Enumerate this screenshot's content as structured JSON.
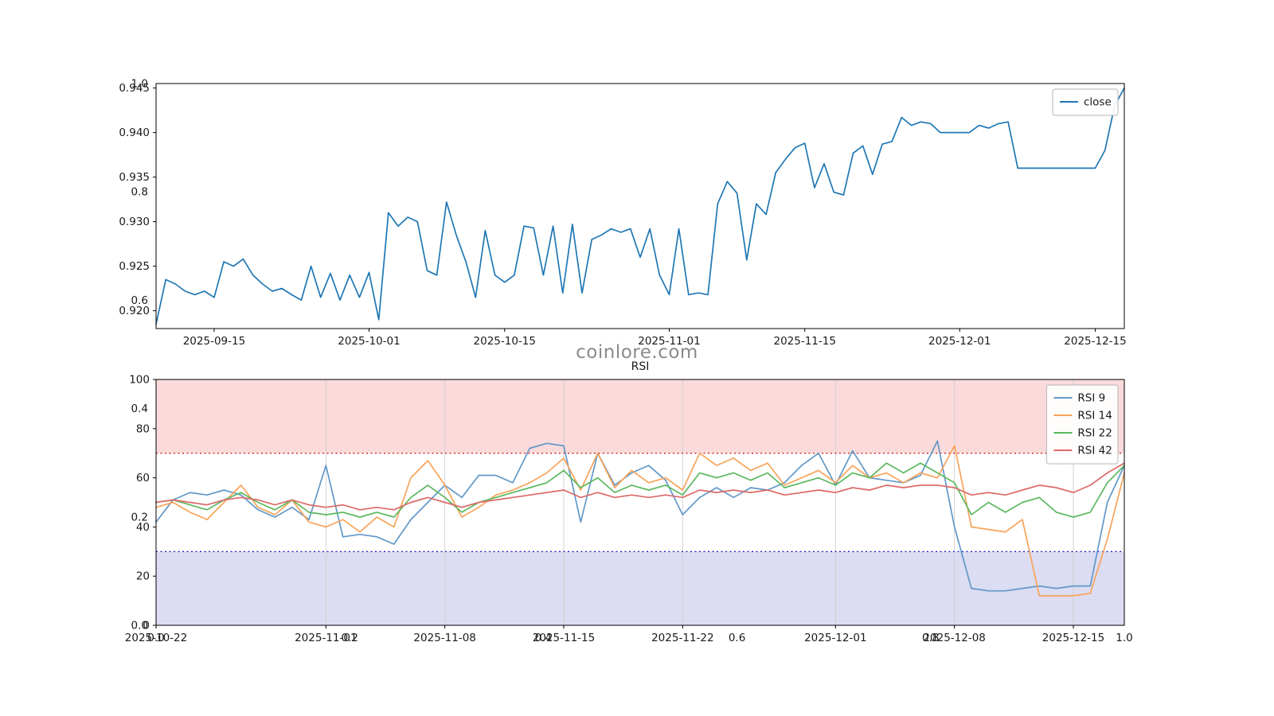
{
  "watermark": "coinlore.com",
  "stray_axis": {
    "left_labels": [
      "1.0",
      "0.8",
      "0.6",
      "0.4",
      "0.2",
      "0.0"
    ],
    "bottom_labels": [
      "0.0",
      "0.2",
      "0.4",
      "0.6",
      "0.8",
      "1.0"
    ]
  },
  "chart_data": [
    {
      "type": "line",
      "name": "price",
      "title": "",
      "x_start": "2025-09-09",
      "x_end": "2025-12-18",
      "freq": "daily",
      "ylim": [
        0.918,
        0.9455
      ],
      "grid_vertical": false,
      "show_legend": true,
      "legend_position": "upper right",
      "yticks": [
        {
          "v": 0.92,
          "label": "0.920"
        },
        {
          "v": 0.925,
          "label": "0.925"
        },
        {
          "v": 0.93,
          "label": "0.930"
        },
        {
          "v": 0.935,
          "label": "0.935"
        },
        {
          "v": 0.94,
          "label": "0.940"
        },
        {
          "v": 0.945,
          "label": "0.945"
        }
      ],
      "xticks": [
        "2025-09-15",
        "2025-10-01",
        "2025-10-15",
        "2025-11-01",
        "2025-11-15",
        "2025-12-01",
        "2025-12-15"
      ],
      "series": [
        {
          "name": "close",
          "color": "#1f77b4",
          "values": [
            0.9185,
            0.9235,
            0.923,
            0.9222,
            0.9218,
            0.9222,
            0.9215,
            0.9255,
            0.925,
            0.9258,
            0.924,
            0.923,
            0.9222,
            0.9225,
            0.9218,
            0.9212,
            0.925,
            0.9215,
            0.9242,
            0.9212,
            0.924,
            0.9215,
            0.9243,
            0.919,
            0.931,
            0.9295,
            0.9305,
            0.93,
            0.9245,
            0.924,
            0.9322,
            0.9285,
            0.9255,
            0.9215,
            0.929,
            0.924,
            0.9232,
            0.924,
            0.9295,
            0.9293,
            0.924,
            0.9295,
            0.922,
            0.9297,
            0.922,
            0.928,
            0.9285,
            0.9292,
            0.9288,
            0.9292,
            0.926,
            0.9292,
            0.924,
            0.9218,
            0.9292,
            0.9218,
            0.922,
            0.9218,
            0.932,
            0.9345,
            0.9332,
            0.9257,
            0.932,
            0.9308,
            0.9355,
            0.937,
            0.9383,
            0.9388,
            0.9338,
            0.9365,
            0.9333,
            0.933,
            0.9377,
            0.9385,
            0.9353,
            0.9387,
            0.939,
            0.9417,
            0.9408,
            0.9412,
            0.941,
            0.94,
            0.94,
            0.94,
            0.94,
            0.9408,
            0.9405,
            0.941,
            0.9412,
            0.936,
            0.936,
            0.936,
            0.936,
            0.936,
            0.936,
            0.936,
            0.936,
            0.936,
            0.938,
            0.943,
            0.945
          ]
        }
      ]
    },
    {
      "type": "line",
      "name": "rsi",
      "title": "RSI",
      "x_start": "2025-10-22",
      "x_end": "2025-12-18",
      "freq": "daily",
      "ylim": [
        0,
        100
      ],
      "grid_vertical": true,
      "show_legend": true,
      "legend_position": "upper right",
      "bands": [
        {
          "from": 70,
          "to": 100,
          "color": "#fadada",
          "meaning": "overbought"
        },
        {
          "from": 0,
          "to": 30,
          "color": "#dcdcf2",
          "meaning": "oversold"
        }
      ],
      "hlines": [
        {
          "y": 70,
          "color": "#cc2222",
          "style": "dotted"
        },
        {
          "y": 30,
          "color": "#2222cc",
          "style": "dotted"
        }
      ],
      "yticks": [
        {
          "v": 0,
          "label": "0"
        },
        {
          "v": 20,
          "label": "20"
        },
        {
          "v": 40,
          "label": "40"
        },
        {
          "v": 60,
          "label": "60"
        },
        {
          "v": 80,
          "label": "80"
        },
        {
          "v": 100,
          "label": "100"
        }
      ],
      "xticks": [
        "2025-10-22",
        "2025-11-01",
        "2025-11-08",
        "2025-11-15",
        "2025-11-22",
        "2025-12-01",
        "2025-12-08",
        "2025-12-15"
      ],
      "series": [
        {
          "name": "RSI 9",
          "color": "#6298c8",
          "values": [
            42,
            51,
            54,
            53,
            55,
            53,
            47,
            44,
            48,
            43,
            65,
            36,
            37,
            36,
            33,
            43,
            50,
            57,
            52,
            61,
            61,
            58,
            72,
            74,
            73,
            42,
            70,
            57,
            62,
            65,
            59,
            45,
            52,
            56,
            52,
            56,
            55,
            58,
            65,
            70,
            57,
            71,
            60,
            59,
            58,
            61,
            75,
            40,
            15,
            14,
            14,
            15,
            16,
            15,
            16,
            16,
            50,
            65
          ]
        },
        {
          "name": "RSI 14",
          "color": "#f8a35a",
          "values": [
            48,
            50,
            46,
            43,
            50,
            57,
            48,
            45,
            51,
            42,
            40,
            43,
            38,
            44,
            40,
            60,
            67,
            57,
            44,
            48,
            53,
            55,
            58,
            62,
            68,
            55,
            70,
            56,
            63,
            58,
            60,
            55,
            70,
            65,
            68,
            63,
            66,
            57,
            60,
            63,
            58,
            65,
            60,
            62,
            58,
            62,
            60,
            73,
            40,
            39,
            38,
            43,
            12,
            12,
            12,
            13,
            35,
            62
          ]
        },
        {
          "name": "RSI 22",
          "color": "#5cb85f",
          "values": [
            50,
            51,
            49,
            47,
            51,
            54,
            50,
            47,
            51,
            46,
            45,
            46,
            44,
            46,
            44,
            52,
            57,
            52,
            46,
            50,
            52,
            54,
            56,
            58,
            63,
            56,
            60,
            54,
            57,
            55,
            57,
            53,
            62,
            60,
            62,
            59,
            62,
            56,
            58,
            60,
            57,
            62,
            60,
            66,
            62,
            66,
            62,
            58,
            45,
            50,
            46,
            50,
            52,
            46,
            44,
            46,
            58,
            65
          ]
        },
        {
          "name": "RSI 42",
          "color": "#dd6a68",
          "values": [
            50,
            51,
            50,
            49,
            51,
            52,
            51,
            49,
            51,
            49,
            48,
            49,
            47,
            48,
            47,
            50,
            52,
            50,
            48,
            50,
            51,
            52,
            53,
            54,
            55,
            52,
            54,
            52,
            53,
            52,
            53,
            52,
            55,
            54,
            55,
            54,
            55,
            53,
            54,
            55,
            54,
            56,
            55,
            57,
            56,
            57,
            57,
            56,
            53,
            54,
            53,
            55,
            57,
            56,
            54,
            57,
            62,
            66
          ]
        }
      ]
    }
  ]
}
